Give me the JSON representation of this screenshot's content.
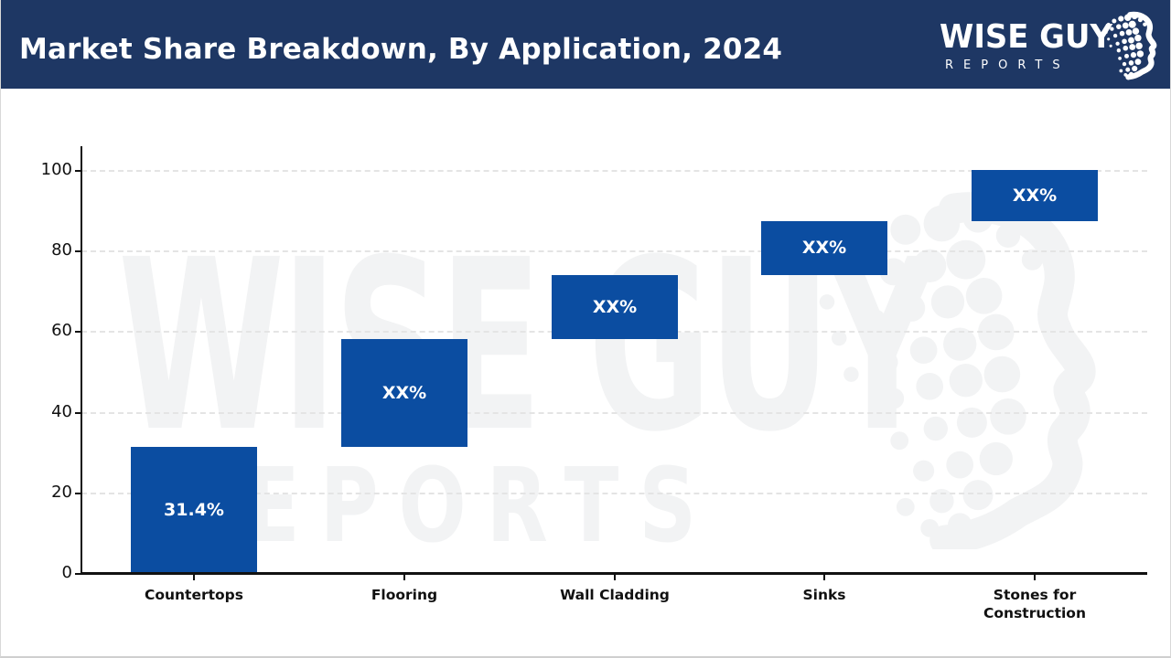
{
  "header": {
    "title": "Market Share Breakdown, By Application, 2024",
    "logo": {
      "line1": "WISE GUY",
      "line2": "REPORTS"
    }
  },
  "watermark": {
    "line1": "WISE GUY",
    "line2": "REPORTS"
  },
  "colors": {
    "header_bg": "#1e3764",
    "bar": "#0b4da1",
    "bar_label": "#ffffff",
    "axis_text": "#111111",
    "gridline": "#e4e4e4",
    "watermark": "#f2f3f4"
  },
  "chart_data": {
    "type": "bar",
    "subtype": "waterfall",
    "title": "Market Share Breakdown, By Application, 2024",
    "categories": [
      "Countertops",
      "Flooring",
      "Wall Cladding",
      "Sinks",
      "Stones for\nConstruction"
    ],
    "segments": [
      {
        "category": "Countertops",
        "start": 0,
        "end": 31.4,
        "label": "31.4%"
      },
      {
        "category": "Flooring",
        "start": 31.4,
        "end": 58,
        "label": "XX%"
      },
      {
        "category": "Wall Cladding",
        "start": 58,
        "end": 74,
        "label": "XX%"
      },
      {
        "category": "Sinks",
        "start": 74,
        "end": 87.3,
        "label": "XX%"
      },
      {
        "category": "Stones for Construction",
        "start": 87.3,
        "end": 100,
        "label": "XX%"
      }
    ],
    "y_ticks": [
      0,
      20,
      40,
      60,
      80,
      100
    ],
    "ylim": [
      0,
      105
    ],
    "xlabel": "",
    "ylabel": "",
    "grid": "horizontal-dashed",
    "legend": "none",
    "bar_color": "#0b4da1",
    "label_color": "#ffffff"
  }
}
